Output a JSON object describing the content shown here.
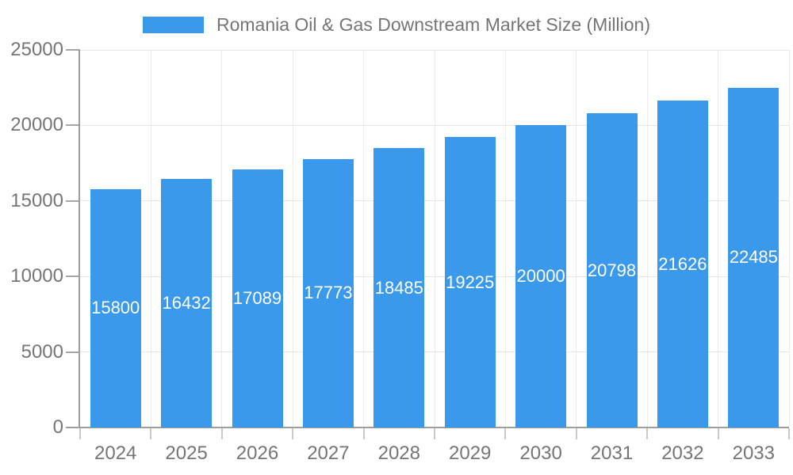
{
  "chart_data": {
    "type": "bar",
    "title": "Romania Oil & Gas Downstream Market Size (Million)",
    "categories": [
      "2024",
      "2025",
      "2026",
      "2027",
      "2028",
      "2029",
      "2030",
      "2031",
      "2032",
      "2033"
    ],
    "series": [
      {
        "name": "Romania Oil & Gas Downstream Market Size (Million)",
        "values": [
          15800,
          16432,
          17089,
          17773,
          18485,
          19225,
          20000,
          20798,
          21626,
          22485
        ]
      }
    ],
    "xlabel": "",
    "ylabel": "",
    "ylim": [
      0,
      25000
    ],
    "yticks": [
      0,
      5000,
      10000,
      15000,
      20000,
      25000
    ],
    "ytick_labels": [
      "0",
      "5000",
      "10000",
      "15000",
      "20000",
      "25000"
    ],
    "grid": true,
    "legend_position": "top",
    "value_label_position": "inside-middle"
  },
  "colors": {
    "bar": "#3B99EC",
    "value_label": "#FFFFFF",
    "axis_line": "#9E9E9E",
    "tick_label": "#757575",
    "title": "#757575",
    "gridline_h": "#E6E6E6",
    "gridline_v": "#EDEDED",
    "tick_mark_y": "#A6A6A6",
    "tick_mark_x": "#C9C9C9",
    "background": "#FFFFFF"
  }
}
